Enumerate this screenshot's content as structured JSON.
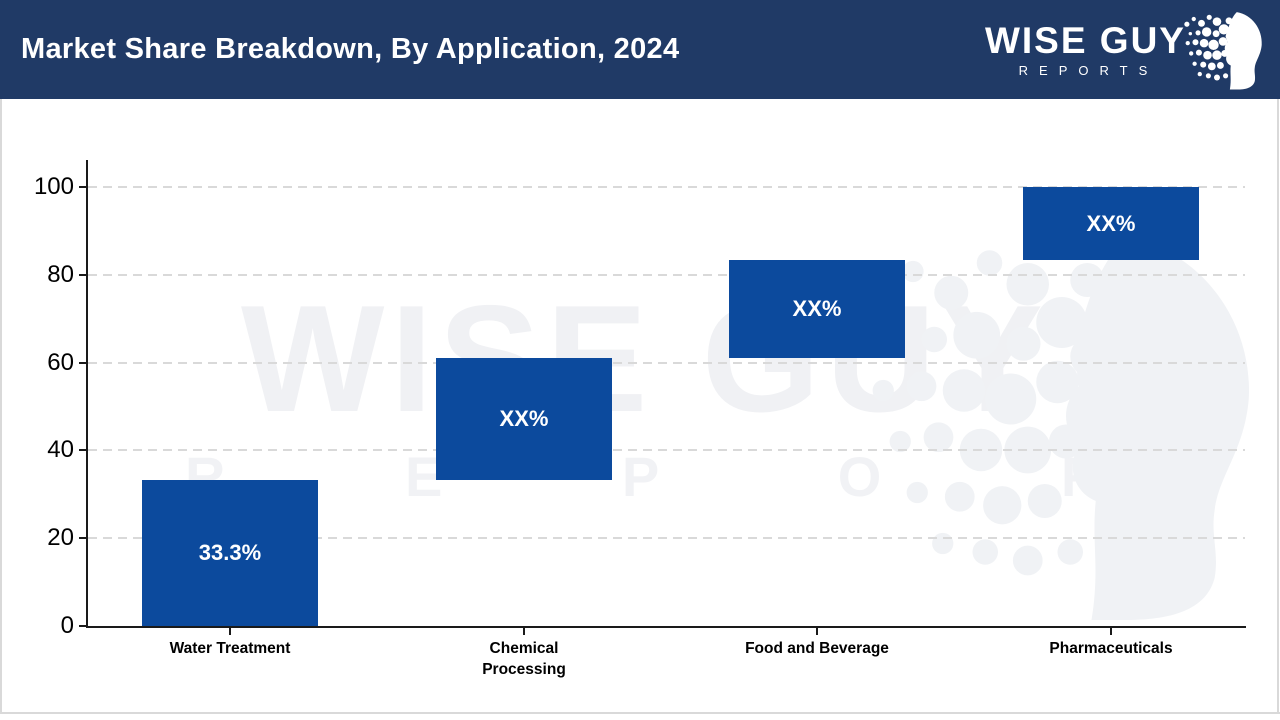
{
  "header": {
    "title": "Market Share Breakdown, By Application, 2024",
    "logo": {
      "wordmark": "WISE GUY",
      "subtitle": "REPORTS"
    }
  },
  "watermark": {
    "line1": "WISE GUY",
    "line2": "R E P O R T S"
  },
  "chart_data": {
    "type": "bar",
    "subtype": "floating-waterfall",
    "title": "Market Share Breakdown, By Application, 2024",
    "categories": [
      "Water Treatment",
      "Chemical\nProcessing",
      "Food and Beverage",
      "Pharmaceuticals"
    ],
    "segments": [
      {
        "category": "Water Treatment",
        "start": 0,
        "end": 33.3,
        "label": "33.3%"
      },
      {
        "category": "Chemical Processing",
        "start": 33.3,
        "end": 61,
        "label": "XX%"
      },
      {
        "category": "Food and Beverage",
        "start": 61,
        "end": 83.3,
        "label": "XX%"
      },
      {
        "category": "Pharmaceuticals",
        "start": 83.3,
        "end": 100,
        "label": "XX%"
      }
    ],
    "ylim": [
      0,
      100
    ],
    "yticks": [
      0,
      20,
      40,
      60,
      80,
      100
    ],
    "xlabel": "",
    "ylabel": "",
    "grid": "horizontal-dashed",
    "legend": false,
    "colors": {
      "bar": "#0c4a9d",
      "bar_label": "#ffffff",
      "header_bg": "#203a66",
      "grid": "#d9d9d9",
      "axis": "#1a1a1a",
      "watermark": "#f0f2f5"
    }
  }
}
